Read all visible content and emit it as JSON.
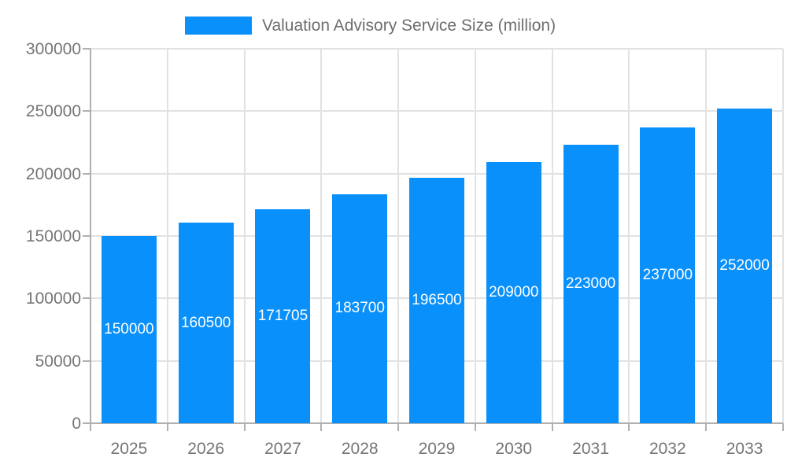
{
  "chart_data": {
    "type": "bar",
    "title": "Valuation Advisory Service Size (million)",
    "legend_position": "top",
    "grid": true,
    "categories": [
      "2025",
      "2026",
      "2027",
      "2028",
      "2029",
      "2030",
      "2031",
      "2032",
      "2033"
    ],
    "values": [
      150000,
      160500,
      171705,
      183700,
      196500,
      209000,
      223000,
      237000,
      252000
    ],
    "value_labels": [
      "150000",
      "160500",
      "171705",
      "183700",
      "196500",
      "209000",
      "223000",
      "237000",
      "252000"
    ],
    "xlabel": "",
    "ylabel": "",
    "ylim": [
      0,
      300000
    ],
    "ytick_step": 50000,
    "ytick_labels": [
      "0",
      "50000",
      "100000",
      "150000",
      "200000",
      "250000",
      "300000"
    ]
  },
  "colors": {
    "bar": "#0990fb",
    "grid": "#e2e2e2",
    "axis": "#b0b0b0",
    "tick_text": "#757575",
    "legend_text": "#6e6e6e",
    "value_text": "#ffffff"
  }
}
